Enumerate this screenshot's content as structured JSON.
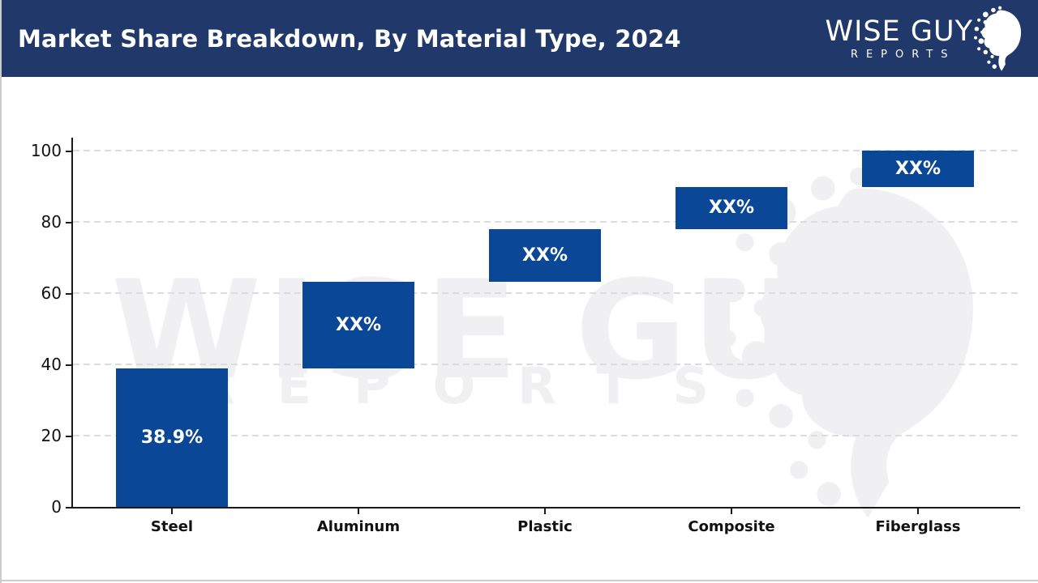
{
  "header": {
    "title": "Market Share Breakdown, By Material Type, 2024"
  },
  "logo": {
    "line1": "WISE GUY",
    "line2": "REPORTS"
  },
  "watermark": {
    "line1": "WISE GUY",
    "line2": "REPORTS"
  },
  "colors": {
    "header_bg": "#21386b",
    "bar": "#0a4796",
    "bar_label_text": "#ffffff",
    "grid": "#dcdcdc",
    "axis": "#1a1a1a",
    "watermark": "#f0f0f3",
    "page_edge": "#cccccc"
  },
  "chart_data": {
    "type": "bar",
    "subtype": "waterfall",
    "title": "Market Share Breakdown, By Material Type, 2024",
    "xlabel": "",
    "ylabel": "",
    "categories": [
      "Steel",
      "Aluminum",
      "Plastic",
      "Composite",
      "Fiberglass"
    ],
    "segments": [
      {
        "category": "Steel",
        "start": 0,
        "end": 38.9,
        "label": "38.9%"
      },
      {
        "category": "Aluminum",
        "start": 38.9,
        "end": 63.2,
        "label": "XX%"
      },
      {
        "category": "Plastic",
        "start": 63.2,
        "end": 78.0,
        "label": "XX%"
      },
      {
        "category": "Composite",
        "start": 78.0,
        "end": 89.8,
        "label": "XX%"
      },
      {
        "category": "Fiberglass",
        "start": 89.8,
        "end": 100.0,
        "label": "XX%"
      }
    ],
    "yticks": [
      0,
      20,
      40,
      60,
      80,
      100
    ],
    "ylim": [
      0,
      103.6
    ],
    "grid": "horizontal-dashed",
    "legend": "none"
  }
}
